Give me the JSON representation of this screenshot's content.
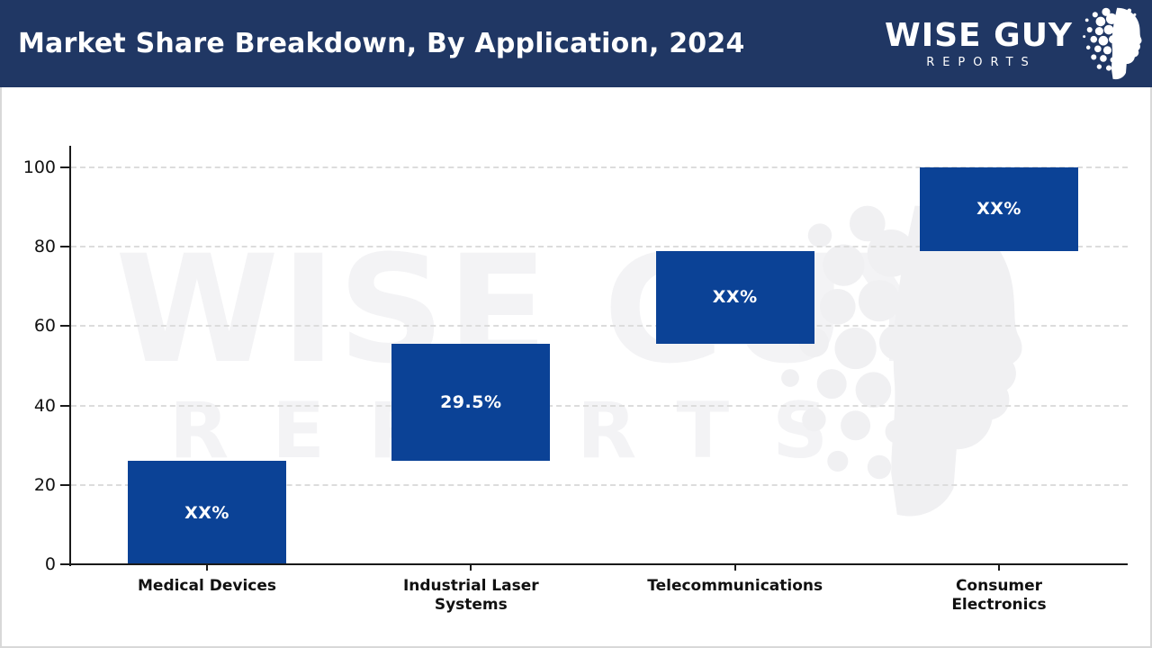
{
  "header": {
    "title": "Market Share Breakdown, By Application, 2024",
    "logo": {
      "name_line": "WISE GUY",
      "sub_line": "REPORTS",
      "icon": "dotted-head-profile"
    }
  },
  "watermark": {
    "name_line": "WISE GUY",
    "sub_line": "REPORTS",
    "icon": "dotted-head-profile"
  },
  "chart_data": {
    "type": "bar",
    "subtype": "waterfall",
    "title": "Market Share Breakdown, By Application, 2024",
    "xlabel": "",
    "ylabel": "",
    "ylim": [
      0,
      100
    ],
    "yticks": [
      0,
      20,
      40,
      60,
      80,
      100
    ],
    "grid": {
      "horizontal": true,
      "style": "dashed",
      "color": "#dcdcdc"
    },
    "legend": "none",
    "categories": [
      "Medical Devices",
      "Industrial Laser\nSystems",
      "Telecommunications",
      "Consumer\nElectronics"
    ],
    "segments": [
      {
        "category": "Medical Devices",
        "start": 0,
        "end": 26,
        "value": 26,
        "label": "XX%"
      },
      {
        "category": "Industrial Laser Systems",
        "start": 26,
        "end": 55.5,
        "value": 29.5,
        "label": "29.5%"
      },
      {
        "category": "Telecommunications",
        "start": 55.5,
        "end": 79,
        "value": 23.5,
        "label": "XX%"
      },
      {
        "category": "Consumer Electronics",
        "start": 79,
        "end": 100,
        "value": 21,
        "label": "XX%"
      }
    ],
    "bar_color": "#0b4296",
    "bar_label_color": "#ffffff",
    "axis_color": "#1a1a1a"
  },
  "colors": {
    "header_bg": "#203764",
    "page_bg": "#ffffff",
    "bar": "#0b4296",
    "watermark": "#f3f3f5",
    "grid": "#dcdcdc",
    "frame": "#d8d8d8"
  }
}
